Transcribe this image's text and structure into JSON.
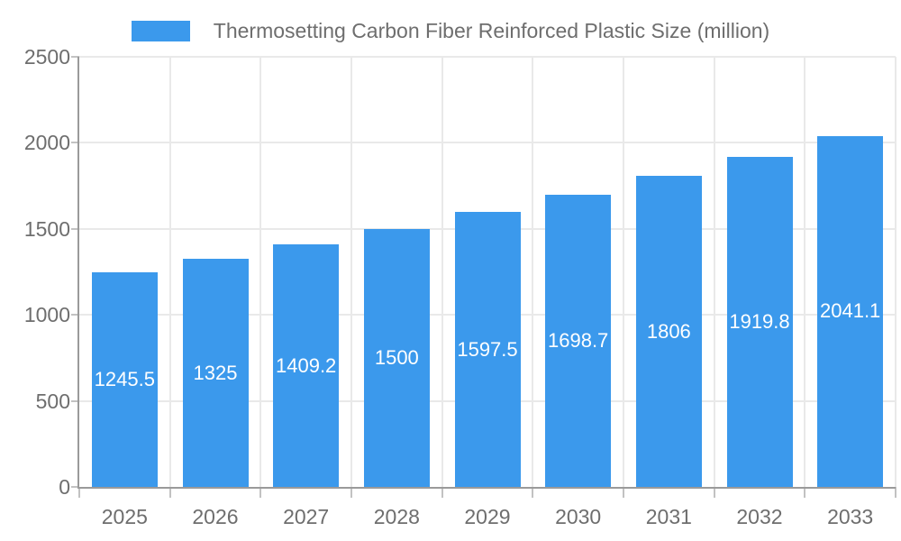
{
  "legend": {
    "label": "Thermosetting Carbon Fiber Reinforced Plastic Size (million)"
  },
  "colors": {
    "bar": "#3B99EC",
    "axis": "#9A9A9A",
    "grid": "#E9E9E9",
    "tick": "#C2C2C2",
    "text": "#6E6E6E",
    "value_label": "#FFFFFF",
    "background": "#FFFFFF"
  },
  "chart_data": {
    "type": "bar",
    "title": "Thermosetting Carbon Fiber Reinforced Plastic Size (million)",
    "legend_entries": [
      "Thermosetting Carbon Fiber Reinforced Plastic Size (million)"
    ],
    "legend_position": "top",
    "categories": [
      "2025",
      "2026",
      "2027",
      "2028",
      "2029",
      "2030",
      "2031",
      "2032",
      "2033"
    ],
    "values": [
      1245.5,
      1325,
      1409.2,
      1500,
      1597.5,
      1698.7,
      1806,
      1919.8,
      2041.1
    ],
    "xlabel": "",
    "ylabel": "",
    "ylim": [
      0,
      2500
    ],
    "ytick_step": 500,
    "yticks": [
      0,
      500,
      1000,
      1500,
      2000,
      2500
    ],
    "grid": true,
    "value_labels": "inside-center"
  }
}
